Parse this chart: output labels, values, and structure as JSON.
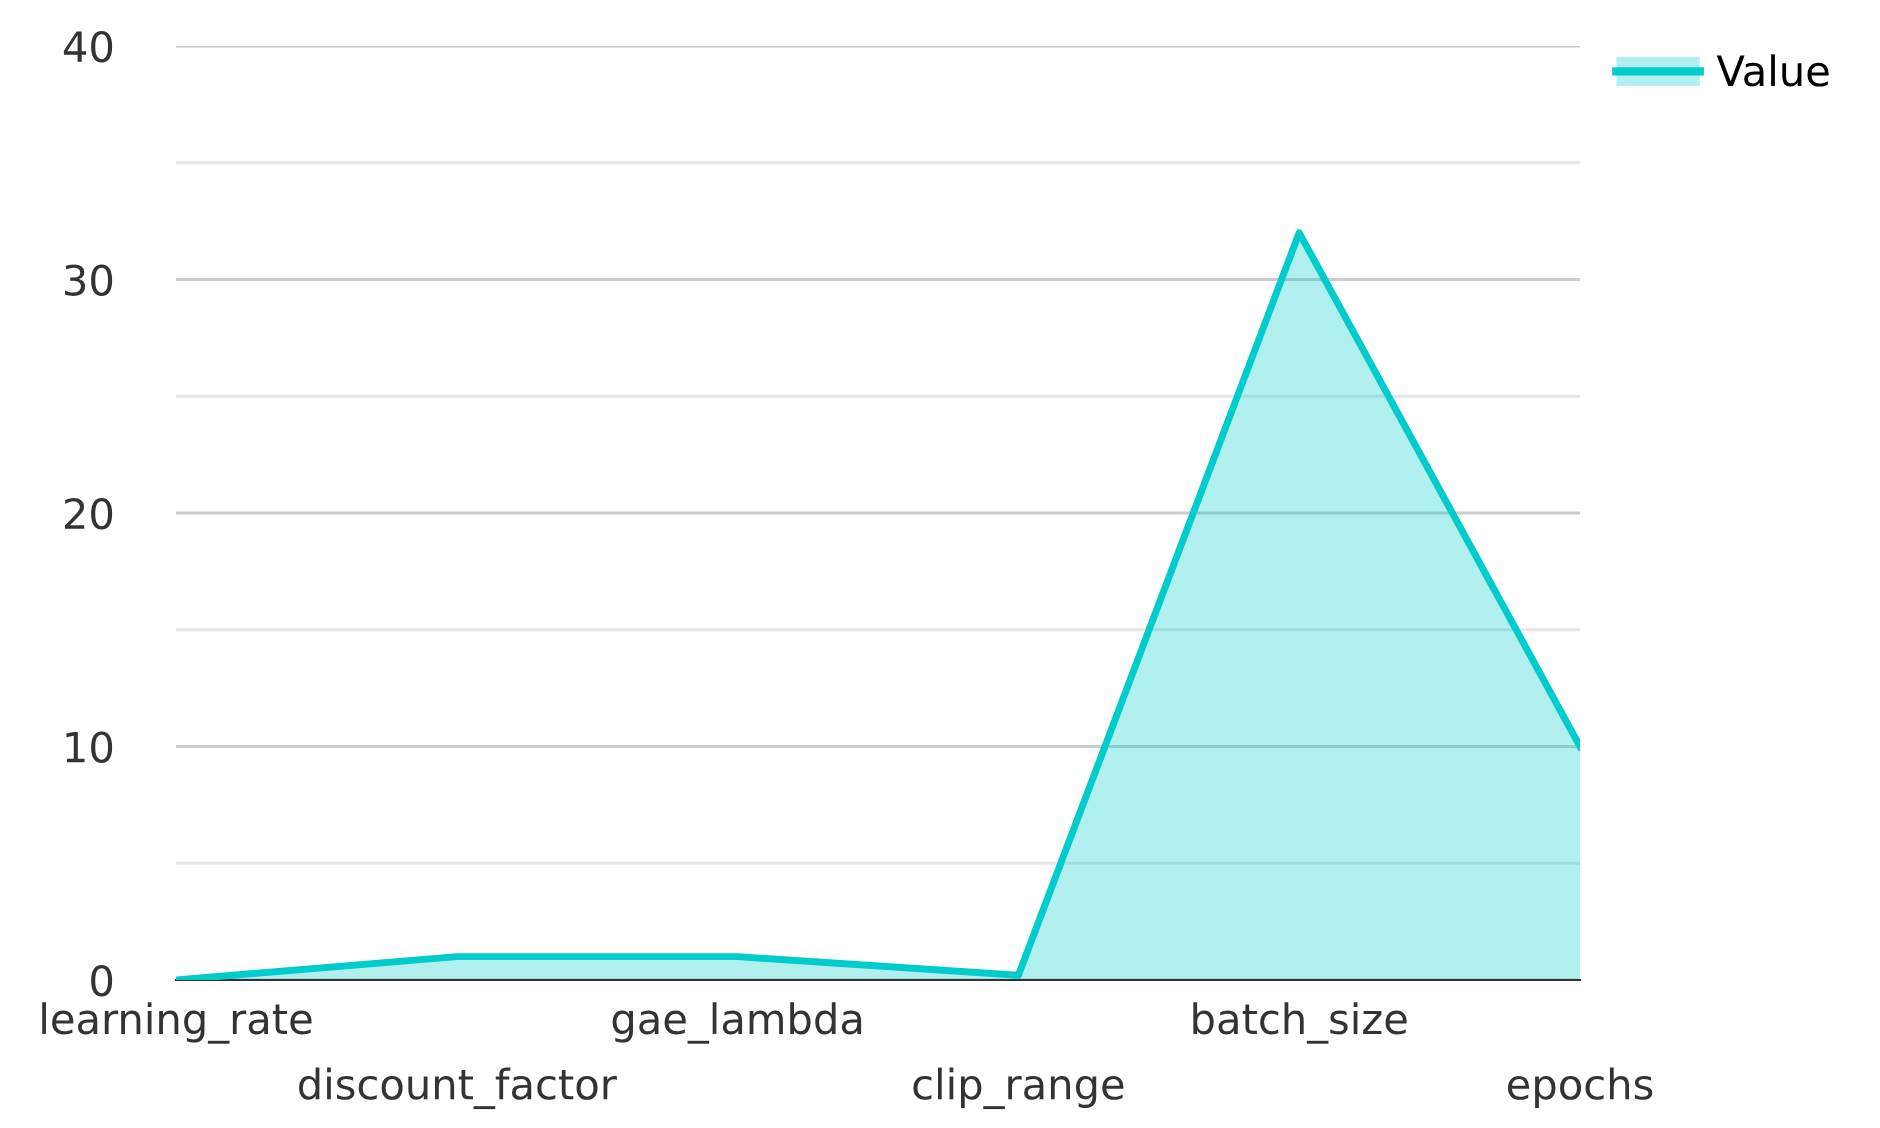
{
  "chart_data": {
    "type": "area",
    "categories": [
      "learning_rate",
      "discount_factor",
      "gae_lambda",
      "clip_range",
      "batch_size",
      "epochs"
    ],
    "series": [
      {
        "name": "Value",
        "color": "#00cccc",
        "values": [
          0,
          1,
          1,
          0.2,
          32,
          10
        ]
      }
    ],
    "ylim": [
      0,
      40
    ],
    "yticks": [
      0,
      {
        "value": 5,
        "label": null
      },
      10,
      {
        "value": 15,
        "label": null
      },
      20,
      {
        "value": 25,
        "label": null
      },
      30,
      {
        "value": 35,
        "label": null
      },
      40
    ],
    "grid": "y",
    "legend": "top right"
  }
}
